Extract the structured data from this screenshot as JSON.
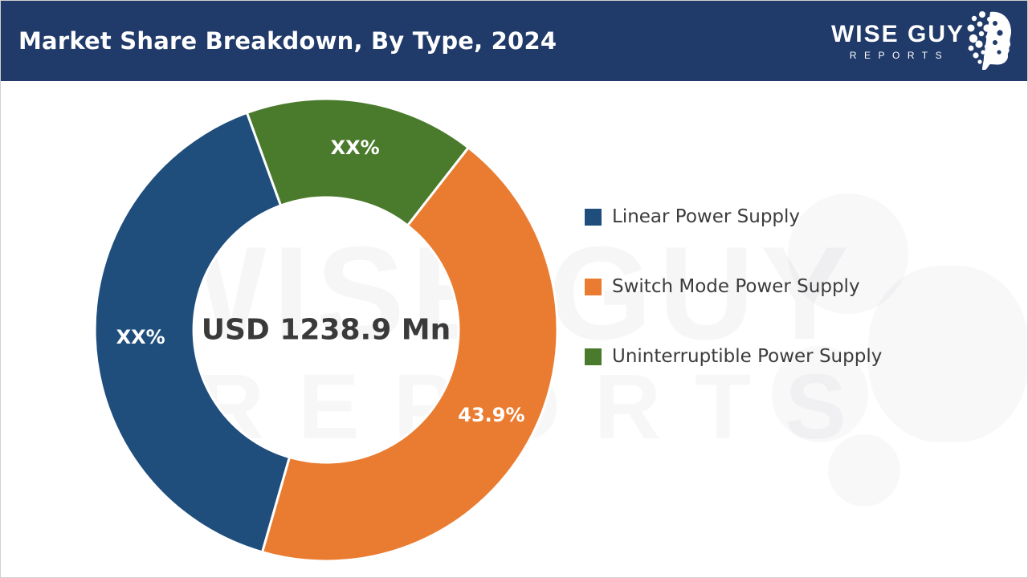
{
  "header": {
    "title": "Market Share Breakdown, By Type, 2024",
    "bg_color": "#203a69",
    "logo": {
      "line1": "WISE GUY",
      "line2": "REPORTS"
    }
  },
  "watermark": {
    "line1": "WISE GUY",
    "line2": "REPORTS"
  },
  "chart_data": {
    "type": "pie",
    "subtype": "donut",
    "title": "Market Share Breakdown, By Type, 2024",
    "center_label": "USD 1238.9 Mn",
    "start_angle_deg": 196,
    "legend_position": "right",
    "segments": [
      {
        "name": "Linear Power Supply",
        "value_pct": 40.0,
        "display_label": "XX%",
        "color": "#1f4e7c"
      },
      {
        "name": "Uninterruptible Power Supply",
        "value_pct": 16.1,
        "display_label": "XX%",
        "color": "#4a7b2c"
      },
      {
        "name": "Switch Mode Power Supply",
        "value_pct": 43.9,
        "display_label": "43.9%",
        "color": "#ea7c31"
      }
    ],
    "legend": [
      {
        "label": "Linear Power Supply",
        "color": "#1f4e7c"
      },
      {
        "label": "Switch Mode Power Supply",
        "color": "#ea7c31"
      },
      {
        "label": "Uninterruptible Power Supply",
        "color": "#4a7b2c"
      }
    ]
  }
}
